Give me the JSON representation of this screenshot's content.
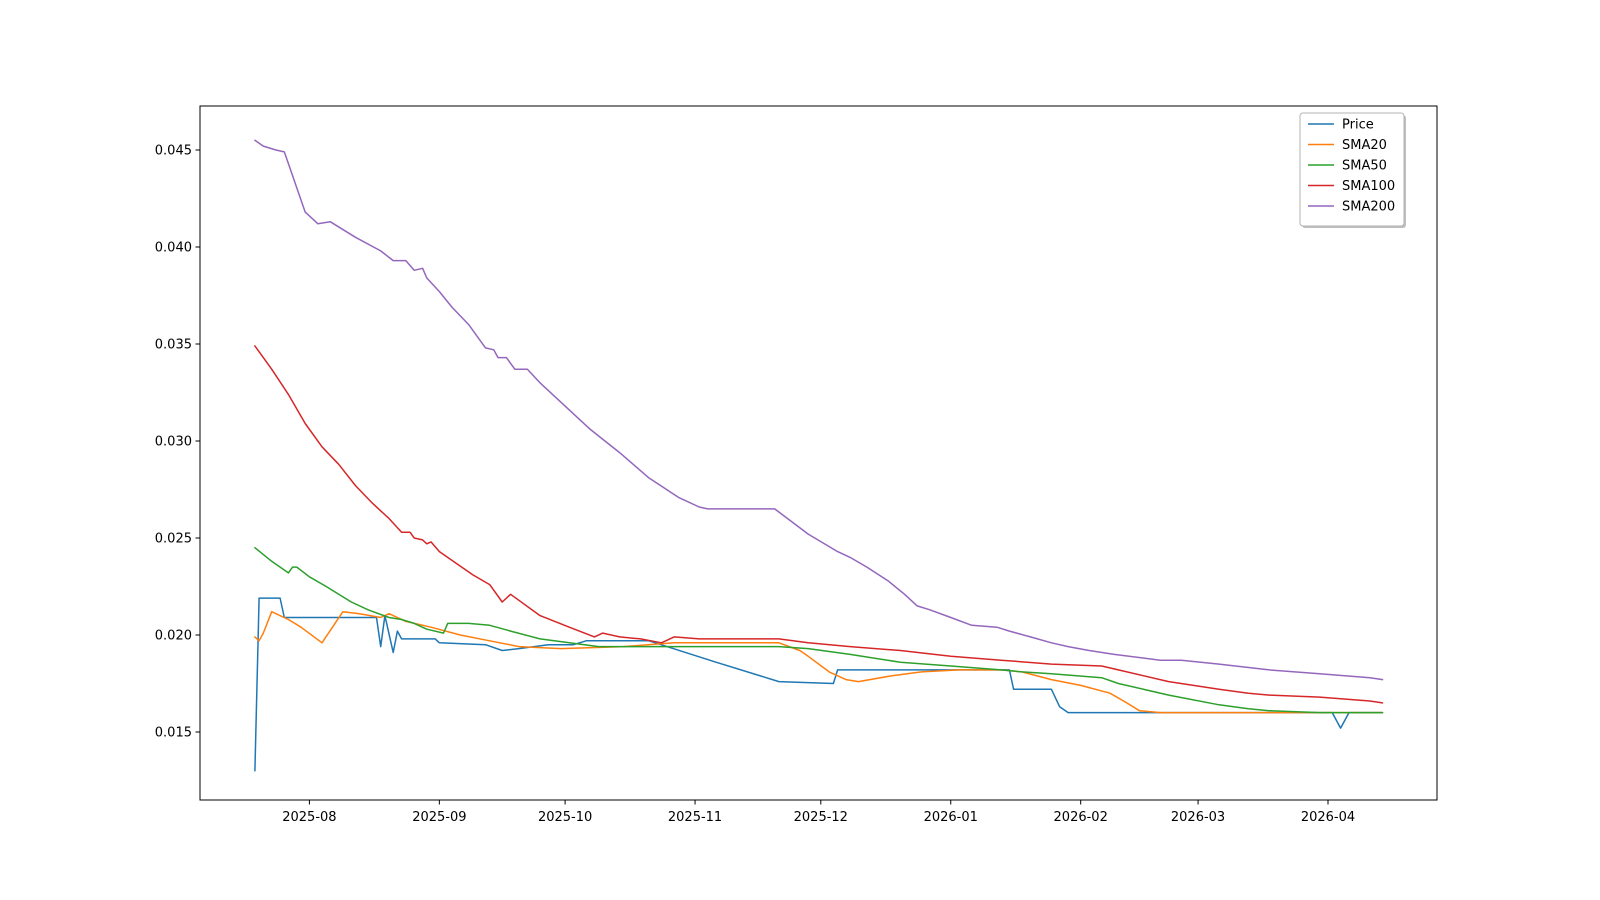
{
  "figure": {
    "background": "#ffffff",
    "spine_color": "#000000",
    "tick_label_color": "#000000"
  },
  "chart_data": {
    "type": "line",
    "title": "",
    "xlabel": "",
    "ylabel": "",
    "grid": false,
    "xlim": [
      -13.1,
      282.0
    ],
    "ylim": [
      0.011495,
      0.047268
    ],
    "x_unit": "days",
    "xticks": [
      {
        "t": 13,
        "label": "2025-08"
      },
      {
        "t": 44,
        "label": "2025-09"
      },
      {
        "t": 74,
        "label": "2025-10"
      },
      {
        "t": 105,
        "label": "2025-11"
      },
      {
        "t": 135,
        "label": "2025-12"
      },
      {
        "t": 166,
        "label": "2026-01"
      },
      {
        "t": 197,
        "label": "2026-02"
      },
      {
        "t": 225,
        "label": "2026-03"
      },
      {
        "t": 256,
        "label": "2026-04"
      }
    ],
    "yticks": [
      {
        "v": 0.015,
        "label": "0.015"
      },
      {
        "v": 0.02,
        "label": "0.020"
      },
      {
        "v": 0.025,
        "label": "0.025"
      },
      {
        "v": 0.03,
        "label": "0.030"
      },
      {
        "v": 0.035,
        "label": "0.035"
      },
      {
        "v": 0.04,
        "label": "0.040"
      },
      {
        "v": 0.045,
        "label": "0.045"
      }
    ],
    "legend": {
      "position": "upper right",
      "entries": [
        "Price",
        "SMA20",
        "SMA50",
        "SMA100",
        "SMA200"
      ]
    },
    "series": [
      {
        "name": "Price",
        "color": "#1f77b4",
        "points": [
          [
            0,
            0.013
          ],
          [
            1,
            0.0219
          ],
          [
            6,
            0.0219
          ],
          [
            7,
            0.0209
          ],
          [
            29,
            0.0209
          ],
          [
            30,
            0.0194
          ],
          [
            31,
            0.021
          ],
          [
            33,
            0.0191
          ],
          [
            34,
            0.0202
          ],
          [
            35,
            0.0198
          ],
          [
            43,
            0.0198
          ],
          [
            44,
            0.0196
          ],
          [
            55,
            0.0195
          ],
          [
            59,
            0.0192
          ],
          [
            63,
            0.0193
          ],
          [
            70,
            0.0195
          ],
          [
            76,
            0.0195
          ],
          [
            79,
            0.0197
          ],
          [
            94,
            0.0197
          ],
          [
            110,
            0.0186
          ],
          [
            125,
            0.0176
          ],
          [
            138,
            0.0175
          ],
          [
            139,
            0.0182
          ],
          [
            180,
            0.0182
          ],
          [
            181,
            0.0172
          ],
          [
            190,
            0.0172
          ],
          [
            192,
            0.0163
          ],
          [
            194,
            0.016
          ],
          [
            257,
            0.016
          ],
          [
            259,
            0.0152
          ],
          [
            261,
            0.016
          ],
          [
            269,
            0.016
          ]
        ]
      },
      {
        "name": "SMA20",
        "color": "#ff7f0e",
        "points": [
          [
            0,
            0.0199
          ],
          [
            1,
            0.0197
          ],
          [
            2,
            0.0201
          ],
          [
            4,
            0.0212
          ],
          [
            8,
            0.0208
          ],
          [
            11,
            0.0204
          ],
          [
            16,
            0.0196
          ],
          [
            21,
            0.0212
          ],
          [
            25,
            0.0211
          ],
          [
            30,
            0.0209
          ],
          [
            32,
            0.0211
          ],
          [
            36,
            0.0207
          ],
          [
            42,
            0.0204
          ],
          [
            49,
            0.02
          ],
          [
            56,
            0.0197
          ],
          [
            63,
            0.0194
          ],
          [
            73,
            0.0193
          ],
          [
            88,
            0.0194
          ],
          [
            100,
            0.0196
          ],
          [
            125,
            0.0196
          ],
          [
            130,
            0.0192
          ],
          [
            132,
            0.0189
          ],
          [
            137,
            0.0181
          ],
          [
            141,
            0.0177
          ],
          [
            144,
            0.0176
          ],
          [
            152,
            0.0179
          ],
          [
            159,
            0.0181
          ],
          [
            168,
            0.0182
          ],
          [
            178,
            0.0182
          ],
          [
            183,
            0.0181
          ],
          [
            190,
            0.0177
          ],
          [
            197,
            0.0174
          ],
          [
            204,
            0.017
          ],
          [
            208,
            0.0165
          ],
          [
            211,
            0.0161
          ],
          [
            216,
            0.016
          ],
          [
            240,
            0.016
          ],
          [
            269,
            0.016
          ]
        ]
      },
      {
        "name": "SMA50",
        "color": "#2ca02c",
        "points": [
          [
            0,
            0.0245
          ],
          [
            4,
            0.0238
          ],
          [
            8,
            0.0232
          ],
          [
            9,
            0.0235
          ],
          [
            10,
            0.0235
          ],
          [
            13,
            0.023
          ],
          [
            17,
            0.0225
          ],
          [
            20,
            0.0221
          ],
          [
            23,
            0.0217
          ],
          [
            27,
            0.0213
          ],
          [
            32,
            0.0209
          ],
          [
            35,
            0.0208
          ],
          [
            38,
            0.0206
          ],
          [
            41,
            0.0203
          ],
          [
            45,
            0.0201
          ],
          [
            46,
            0.0206
          ],
          [
            51,
            0.0206
          ],
          [
            56,
            0.0205
          ],
          [
            61,
            0.0202
          ],
          [
            68,
            0.0198
          ],
          [
            75,
            0.0196
          ],
          [
            82,
            0.0194
          ],
          [
            106,
            0.0194
          ],
          [
            125,
            0.0194
          ],
          [
            132,
            0.0193
          ],
          [
            142,
            0.019
          ],
          [
            154,
            0.0186
          ],
          [
            166,
            0.0184
          ],
          [
            178,
            0.0182
          ],
          [
            183,
            0.0181
          ],
          [
            190,
            0.018
          ],
          [
            202,
            0.0178
          ],
          [
            206,
            0.0175
          ],
          [
            218,
            0.0169
          ],
          [
            230,
            0.0164
          ],
          [
            237,
            0.0162
          ],
          [
            242,
            0.0161
          ],
          [
            254,
            0.016
          ],
          [
            269,
            0.016
          ]
        ]
      },
      {
        "name": "SMA100",
        "color": "#d62728",
        "points": [
          [
            0,
            0.0349
          ],
          [
            4,
            0.0337
          ],
          [
            8,
            0.0324
          ],
          [
            12,
            0.0309
          ],
          [
            16,
            0.0297
          ],
          [
            20,
            0.0288
          ],
          [
            24,
            0.0277
          ],
          [
            28,
            0.0268
          ],
          [
            32,
            0.026
          ],
          [
            35,
            0.0253
          ],
          [
            37,
            0.0253
          ],
          [
            38,
            0.025
          ],
          [
            40,
            0.0249
          ],
          [
            41,
            0.0247
          ],
          [
            42,
            0.0248
          ],
          [
            44,
            0.0243
          ],
          [
            48,
            0.0237
          ],
          [
            52,
            0.0231
          ],
          [
            56,
            0.0226
          ],
          [
            59,
            0.0217
          ],
          [
            61,
            0.0221
          ],
          [
            68,
            0.021
          ],
          [
            75,
            0.0204
          ],
          [
            81,
            0.0199
          ],
          [
            83,
            0.0201
          ],
          [
            87,
            0.0199
          ],
          [
            92,
            0.0198
          ],
          [
            97,
            0.0196
          ],
          [
            100,
            0.0199
          ],
          [
            106,
            0.0198
          ],
          [
            125,
            0.0198
          ],
          [
            132,
            0.0196
          ],
          [
            142,
            0.0194
          ],
          [
            154,
            0.0192
          ],
          [
            166,
            0.0189
          ],
          [
            178,
            0.0187
          ],
          [
            190,
            0.0185
          ],
          [
            202,
            0.0184
          ],
          [
            206,
            0.0182
          ],
          [
            218,
            0.0176
          ],
          [
            230,
            0.0172
          ],
          [
            237,
            0.017
          ],
          [
            242,
            0.0169
          ],
          [
            254,
            0.0168
          ],
          [
            266,
            0.0166
          ],
          [
            269,
            0.0165
          ]
        ]
      },
      {
        "name": "SMA200",
        "color": "#9467bd",
        "points": [
          [
            0,
            0.0455
          ],
          [
            2,
            0.0452
          ],
          [
            5,
            0.045
          ],
          [
            7,
            0.0449
          ],
          [
            8,
            0.0443
          ],
          [
            12,
            0.0418
          ],
          [
            15,
            0.0412
          ],
          [
            18,
            0.0413
          ],
          [
            24,
            0.0405
          ],
          [
            30,
            0.0398
          ],
          [
            33,
            0.0393
          ],
          [
            36,
            0.0393
          ],
          [
            38,
            0.0388
          ],
          [
            40,
            0.0389
          ],
          [
            41,
            0.0384
          ],
          [
            44,
            0.0377
          ],
          [
            47,
            0.0369
          ],
          [
            51,
            0.036
          ],
          [
            55,
            0.0348
          ],
          [
            57,
            0.0347
          ],
          [
            58,
            0.0343
          ],
          [
            60,
            0.0343
          ],
          [
            62,
            0.0337
          ],
          [
            65,
            0.0337
          ],
          [
            68,
            0.033
          ],
          [
            73,
            0.032
          ],
          [
            80,
            0.0306
          ],
          [
            87,
            0.0294
          ],
          [
            94,
            0.0281
          ],
          [
            101,
            0.0271
          ],
          [
            106,
            0.0266
          ],
          [
            108,
            0.0265
          ],
          [
            124,
            0.0265
          ],
          [
            132,
            0.0252
          ],
          [
            139,
            0.0243
          ],
          [
            142,
            0.024
          ],
          [
            146,
            0.0235
          ],
          [
            151,
            0.0228
          ],
          [
            155,
            0.0221
          ],
          [
            158,
            0.0215
          ],
          [
            161,
            0.0213
          ],
          [
            166,
            0.0209
          ],
          [
            171,
            0.0205
          ],
          [
            177,
            0.0204
          ],
          [
            180,
            0.0202
          ],
          [
            185,
            0.0199
          ],
          [
            190,
            0.0196
          ],
          [
            194,
            0.0194
          ],
          [
            199,
            0.0192
          ],
          [
            205,
            0.019
          ],
          [
            216,
            0.0187
          ],
          [
            221,
            0.0187
          ],
          [
            230,
            0.0185
          ],
          [
            242,
            0.0182
          ],
          [
            254,
            0.018
          ],
          [
            266,
            0.0178
          ],
          [
            269,
            0.0177
          ]
        ]
      }
    ]
  }
}
